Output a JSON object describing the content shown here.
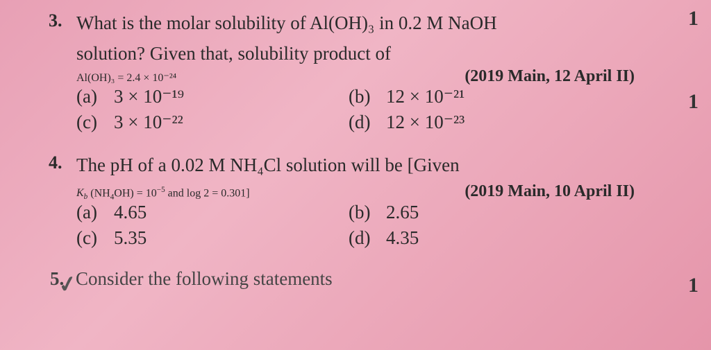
{
  "background_colors": [
    "#e8a0b5",
    "#f0b5c5",
    "#e595aa"
  ],
  "text_color": "#2a2a2a",
  "base_fontsize": 27,
  "source_fontsize": 24,
  "q3": {
    "num": "3.",
    "line1": "What is the molar solubility of Al(OH)₃ in 0.2 M NaOH",
    "line2": "solution? Given that, solubility product of",
    "line3": "Al(OH)₃ = 2.4 × 10⁻²⁴",
    "source": "(2019 Main, 12 April II)",
    "options": {
      "a": {
        "label": "(a)",
        "text": "3 × 10⁻¹⁹"
      },
      "b": {
        "label": "(b)",
        "text": "12 × 10⁻²¹"
      },
      "c": {
        "label": "(c)",
        "text": "3 × 10⁻²²"
      },
      "d": {
        "label": "(d)",
        "text": "12 × 10⁻²³"
      }
    }
  },
  "q4": {
    "num": "4.",
    "line1": "The pH of a 0.02 M NH₄Cl solution will be [Given",
    "line2_left": "K_b (NH₄OH) = 10⁻⁵ and log 2 = 0.301]",
    "source": "(2019 Main, 10 April II)",
    "options": {
      "a": {
        "label": "(a)",
        "text": "4.65"
      },
      "b": {
        "label": "(b)",
        "text": "2.65"
      },
      "c": {
        "label": "(c)",
        "text": "5.35"
      },
      "d": {
        "label": "(d)",
        "text": "4.35"
      }
    }
  },
  "q5": {
    "num": "5.",
    "partial": "Consider the following statements"
  },
  "right_digits": {
    "d1": "1",
    "d2": "1",
    "d3": "1"
  },
  "checkmark": "✓"
}
